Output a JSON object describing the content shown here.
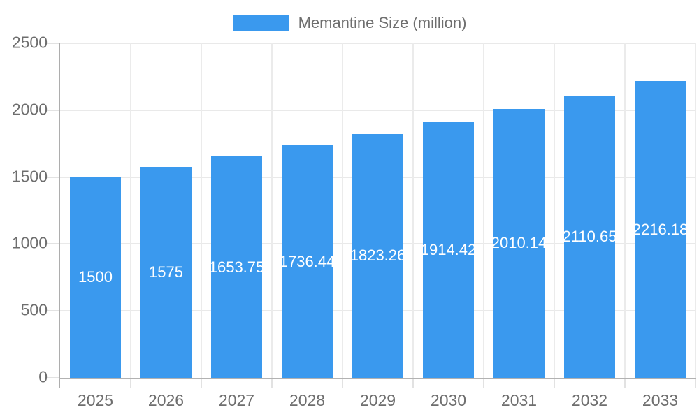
{
  "page": {
    "background": "#ffffff"
  },
  "legend": {
    "label": "Memantine Size (million)",
    "position": "top"
  },
  "chart_data": {
    "type": "bar",
    "title": "",
    "legend_label": "Memantine Size (million)",
    "legend_position": "top",
    "categories": [
      "2025",
      "2026",
      "2027",
      "2028",
      "2029",
      "2030",
      "2031",
      "2032",
      "2033"
    ],
    "series": [
      {
        "name": "Memantine Size (million)",
        "values": [
          1500,
          1575,
          1653.75,
          1736.44,
          1823.26,
          1914.42,
          2010.14,
          2110.65,
          2216.18
        ]
      }
    ],
    "value_labels": [
      "1500",
      "1575",
      "1653.75",
      "1736.44",
      "1823.26",
      "1914.42",
      "2010.14",
      "2110.65",
      "2216.18"
    ],
    "xlabel": "",
    "ylabel": "",
    "ylim": [
      0,
      2500
    ],
    "y_ticks": [
      0,
      500,
      1000,
      1500,
      2000,
      2500
    ],
    "grid": true,
    "colors": {
      "bar": "#3A99EE",
      "value_label": "#ffffff",
      "axis_text": "#6e6e6e",
      "gridline": "#e9e9e9",
      "axis_line": "#b0b0b0",
      "tick_mark": "#e2e2e2"
    }
  }
}
